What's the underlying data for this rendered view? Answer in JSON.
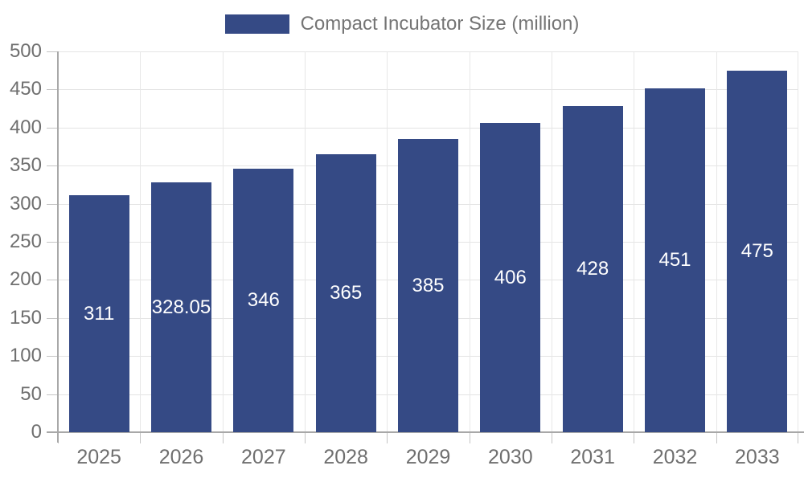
{
  "legend": {
    "label": "Compact Incubator Size (million)"
  },
  "colors": {
    "bar": "#354a85",
    "bar_label": "#ffffff",
    "axis_line": "#a8a8a8",
    "tick": "#c4c4c4",
    "gridline": "#e4e4e4",
    "axis_text": "#6f6f6f",
    "legend_text": "#757575",
    "background": "#ffffff"
  },
  "chart_data": {
    "type": "bar",
    "title": "Compact Incubator Size (million)",
    "categories": [
      "2025",
      "2026",
      "2027",
      "2028",
      "2029",
      "2030",
      "2031",
      "2032",
      "2033"
    ],
    "values": [
      311,
      328.05,
      346,
      365,
      385,
      406,
      428,
      451,
      475
    ],
    "value_labels": [
      "311",
      "328.05",
      "346",
      "365",
      "385",
      "406",
      "428",
      "451",
      "475"
    ],
    "xlabel": "",
    "ylabel": "",
    "ylim": [
      0,
      500
    ],
    "ytick_step": 50,
    "ytick_labels": [
      "0",
      "50",
      "100",
      "150",
      "200",
      "250",
      "300",
      "350",
      "400",
      "450",
      "500"
    ],
    "grid": true,
    "legend_position": "top-center",
    "value_label_position": "bar-center"
  }
}
